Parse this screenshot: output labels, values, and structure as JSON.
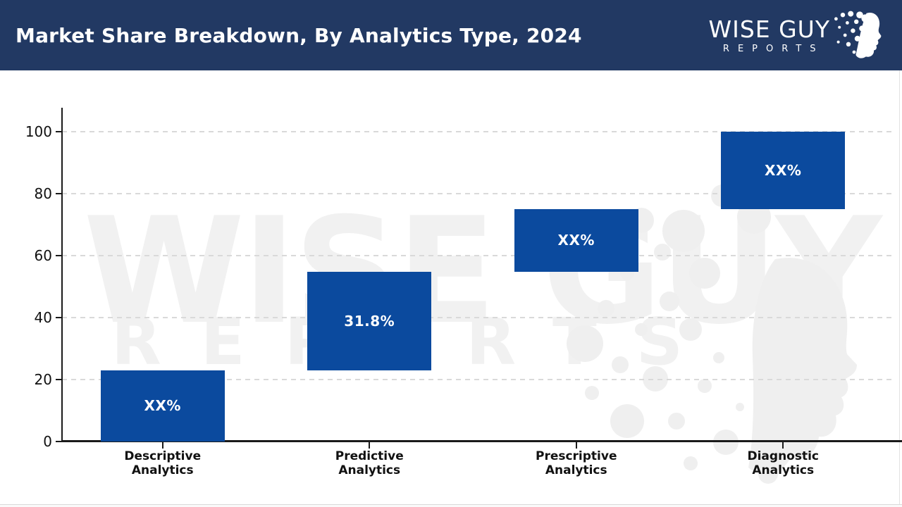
{
  "header": {
    "title": "Market Share Breakdown, By Analytics Type, 2024",
    "logo": {
      "name": "WISE GUY",
      "subname": "REPORTS"
    }
  },
  "watermark": {
    "brand": "WISE GUY",
    "brand_sub": "REPORTS"
  },
  "colors": {
    "header_bg": "#223963",
    "bar": "#0b4a9e",
    "bar_label": "#ffffff",
    "grid": "#d9d9d9",
    "axis": "#1a1a1a",
    "watermark": "#f1f1f1"
  },
  "chart_data": {
    "type": "bar",
    "subtype": "waterfall",
    "title": "Market Share Breakdown, By Analytics Type, 2024",
    "xlabel": "",
    "ylabel": "",
    "ylim": [
      0,
      107
    ],
    "yticks": [
      0,
      20,
      40,
      60,
      80,
      100
    ],
    "grid": "horizontal-dashed",
    "legend": "none",
    "categories": [
      "Descriptive Analytics",
      "Predictive Analytics",
      "Prescriptive Analytics",
      "Diagnostic Analytics"
    ],
    "bars": [
      {
        "category": "Descriptive\nAnalytics",
        "start": 0,
        "end": 23,
        "value": 23,
        "label": "XX%"
      },
      {
        "category": "Predictive\nAnalytics",
        "start": 23,
        "end": 54.8,
        "value": 31.8,
        "label": "31.8%"
      },
      {
        "category": "Prescriptive\nAnalytics",
        "start": 54.8,
        "end": 75,
        "value": 20.2,
        "label": "XX%"
      },
      {
        "category": "Diagnostic\nAnalytics",
        "start": 75,
        "end": 100,
        "value": 25,
        "label": "XX%"
      }
    ]
  }
}
